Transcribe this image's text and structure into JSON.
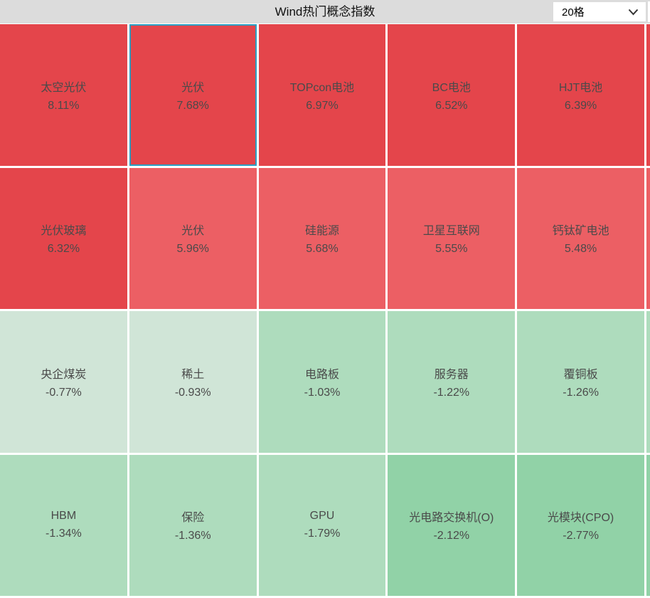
{
  "header": {
    "title": "Wind热门概念指数",
    "grid_selector": {
      "value": "20格"
    }
  },
  "colors": {
    "header_bar": "#dcdcdc",
    "gap": "#ffffff",
    "selection_border": "#2b9fc4",
    "cell_text": "#4a4a4a",
    "strong_red": "#e4454b",
    "light_red": "#ec5f64",
    "lightest_green": "#d0e5d7",
    "mid_green": "#aedcbd",
    "dark_green": "#91d2a7"
  },
  "chart_data": {
    "type": "heatmap",
    "title": "Wind热门概念指数",
    "value_unit": "% daily change",
    "grid": {
      "rows": 4,
      "cols": 5
    },
    "cells": [
      {
        "name": "太空光伏",
        "value": 8.11,
        "display": "8.11%",
        "color": "#e4454b",
        "selected": false
      },
      {
        "name": "光伏",
        "value": 7.68,
        "display": "7.68%",
        "color": "#e4454b",
        "selected": true
      },
      {
        "name": "TOPcon电池",
        "value": 6.97,
        "display": "6.97%",
        "color": "#e4454b",
        "selected": false
      },
      {
        "name": "BC电池",
        "value": 6.52,
        "display": "6.52%",
        "color": "#e4454b",
        "selected": false
      },
      {
        "name": "HJT电池",
        "value": 6.39,
        "display": "6.39%",
        "color": "#e4454b",
        "selected": false
      },
      {
        "name": "光伏玻璃",
        "value": 6.32,
        "display": "6.32%",
        "color": "#e4454b",
        "selected": false
      },
      {
        "name": "光伏",
        "value": 5.96,
        "display": "5.96%",
        "color": "#ec5f64",
        "selected": false
      },
      {
        "name": "硅能源",
        "value": 5.68,
        "display": "5.68%",
        "color": "#ec5f64",
        "selected": false
      },
      {
        "name": "卫星互联网",
        "value": 5.55,
        "display": "5.55%",
        "color": "#ec5f64",
        "selected": false
      },
      {
        "name": "钙钛矿电池",
        "value": 5.48,
        "display": "5.48%",
        "color": "#ec5f64",
        "selected": false
      },
      {
        "name": "央企煤炭",
        "value": -0.77,
        "display": "-0.77%",
        "color": "#d0e5d7",
        "selected": false
      },
      {
        "name": "稀土",
        "value": -0.93,
        "display": "-0.93%",
        "color": "#d0e5d7",
        "selected": false
      },
      {
        "name": "电路板",
        "value": -1.03,
        "display": "-1.03%",
        "color": "#aedcbd",
        "selected": false
      },
      {
        "name": "服务器",
        "value": -1.22,
        "display": "-1.22%",
        "color": "#aedcbd",
        "selected": false
      },
      {
        "name": "覆铜板",
        "value": -1.26,
        "display": "-1.26%",
        "color": "#aedcbd",
        "selected": false
      },
      {
        "name": "HBM",
        "value": -1.34,
        "display": "-1.34%",
        "color": "#aedcbd",
        "selected": false
      },
      {
        "name": "保险",
        "value": -1.36,
        "display": "-1.36%",
        "color": "#aedcbd",
        "selected": false
      },
      {
        "name": "GPU",
        "value": -1.79,
        "display": "-1.79%",
        "color": "#aedcbd",
        "selected": false
      },
      {
        "name": "光电路交换机(O)",
        "value": -2.12,
        "display": "-2.12%",
        "color": "#91d2a7",
        "selected": false
      },
      {
        "name": "光模块(CPO)",
        "value": -2.77,
        "display": "-2.77%",
        "color": "#91d2a7",
        "selected": false
      }
    ],
    "clipped_right_column_colors": [
      "#e4454b",
      "#ec5f64",
      "#aedcbd",
      "#91d2a7"
    ]
  }
}
